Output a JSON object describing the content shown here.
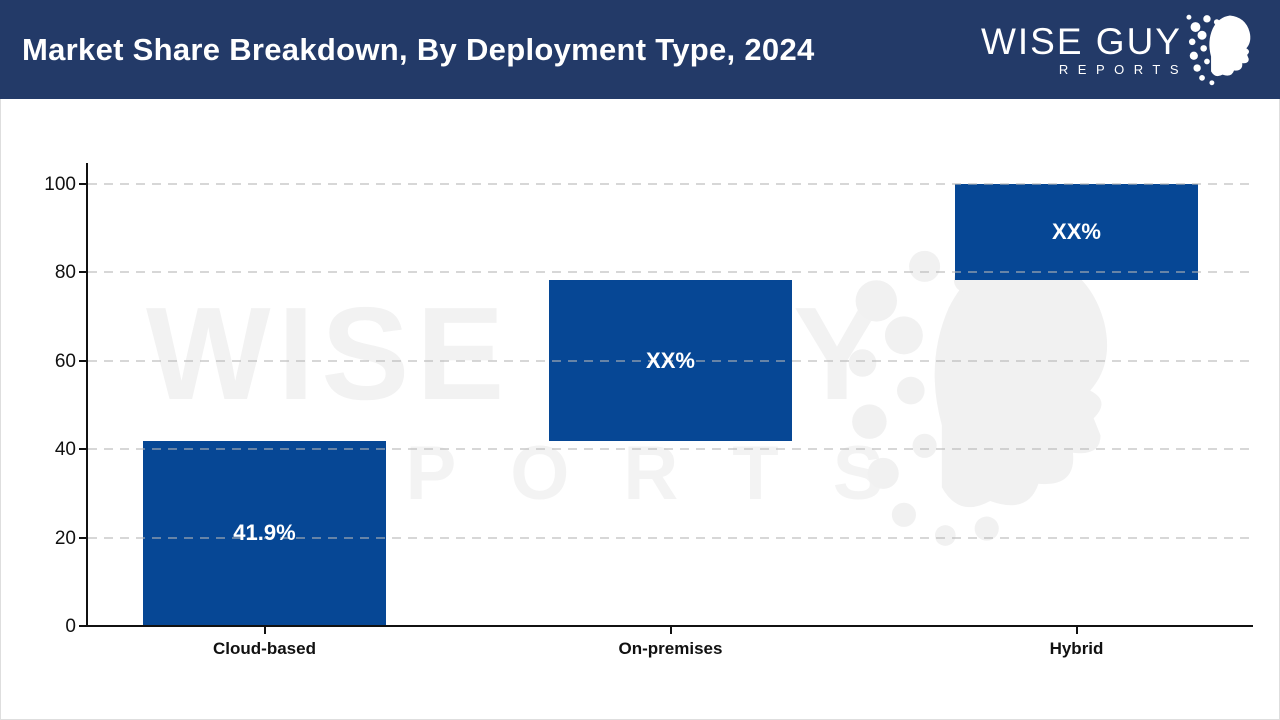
{
  "header": {
    "title": "Market Share Breakdown, By Deployment Type, 2024",
    "logo": {
      "line1": "WISE GUY",
      "line2": "REPORTS"
    }
  },
  "watermark": {
    "line1": "WISE GUY",
    "line2": "REPORTS"
  },
  "colors": {
    "header_bg": "#233A68",
    "bar": "#064795",
    "watermark": "#F2F2F2",
    "axis": "#111111"
  },
  "chart_data": {
    "type": "bar",
    "subtype": "waterfall-floating-bars",
    "title": "Market Share Breakdown, By Deployment Type, 2024",
    "xlabel": "",
    "ylabel": "",
    "categories": [
      "Cloud-based",
      "On-premises",
      "Hybrid"
    ],
    "segments": [
      {
        "category": "Cloud-based",
        "start": 0,
        "end": 41.9,
        "value": 41.9,
        "label": "41.9%"
      },
      {
        "category": "On-premises",
        "start": 41.9,
        "end": 78.2,
        "value": 36.3,
        "label": "XX%"
      },
      {
        "category": "Hybrid",
        "start": 78.2,
        "end": 100,
        "value": 21.8,
        "label": "XX%"
      }
    ],
    "y_ticks": [
      0,
      20,
      40,
      60,
      80,
      100
    ],
    "ylim": [
      0,
      105
    ],
    "grid": true,
    "grid_style": "dashed",
    "legend": "none",
    "bar_color": "#064795"
  }
}
